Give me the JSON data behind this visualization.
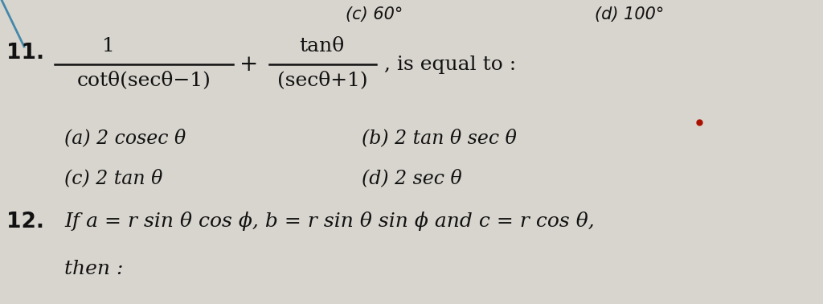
{
  "bg_color": "#d8d5ce",
  "text_color": "#111111",
  "fig_width": 10.24,
  "fig_height": 3.78,
  "top_right_text": "(d) 100°",
  "top_center_text": "(c) 60°",
  "q11_number": "11.",
  "q11_formula_suffix": ", is equal to :",
  "q11_opt_a": "(a) 2 cosec θ",
  "q11_opt_b": "(b) 2 tan θ sec θ",
  "q11_opt_c": "(c) 2 tan θ",
  "q11_opt_d": "(d) 2 sec θ",
  "q12_number": "12.",
  "q12_text": "If a = r sin θ cos ϕ, b = r sin θ sin ϕ and c = r cos θ,",
  "q12_text2": "then :",
  "red_dot_color": "#aa1100",
  "diag_color": "#4488aa"
}
